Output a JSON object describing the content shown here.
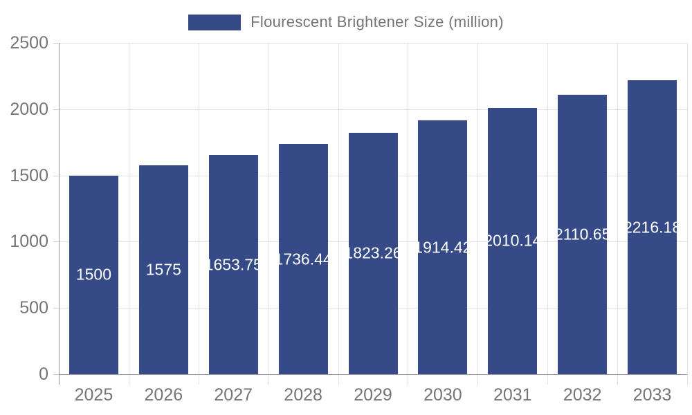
{
  "legend": {
    "label": "Flourescent Brightener Size (million)"
  },
  "chart_data": {
    "type": "bar",
    "title": "Flourescent Brightener Size (million)",
    "categories": [
      "2025",
      "2026",
      "2027",
      "2028",
      "2029",
      "2030",
      "2031",
      "2032",
      "2033"
    ],
    "values": [
      1500,
      1575,
      1653.75,
      1736.44,
      1823.26,
      1914.42,
      2010.14,
      2110.65,
      2216.18
    ],
    "value_labels": [
      "1500",
      "1575",
      "1653.75",
      "1736.44",
      "1823.26",
      "1914.42",
      "2010.14",
      "2110.65",
      "2216.18"
    ],
    "ylim": [
      0,
      2500
    ],
    "yticks": [
      0,
      500,
      1000,
      1500,
      2000,
      2500
    ],
    "ytick_labels": [
      "0",
      "500",
      "1000",
      "1500",
      "2000",
      "2500"
    ],
    "legend_entries": [
      "Flourescent Brightener Size (million)"
    ],
    "legend_position": "top-center",
    "grid": true,
    "bar_color": "#364A87",
    "bar_label_color": "#ffffff",
    "axis_text_color": "#757575",
    "gridline_color": "#e3e3e3",
    "axis_line_color": "#999999",
    "xlabel": "",
    "ylabel": ""
  }
}
